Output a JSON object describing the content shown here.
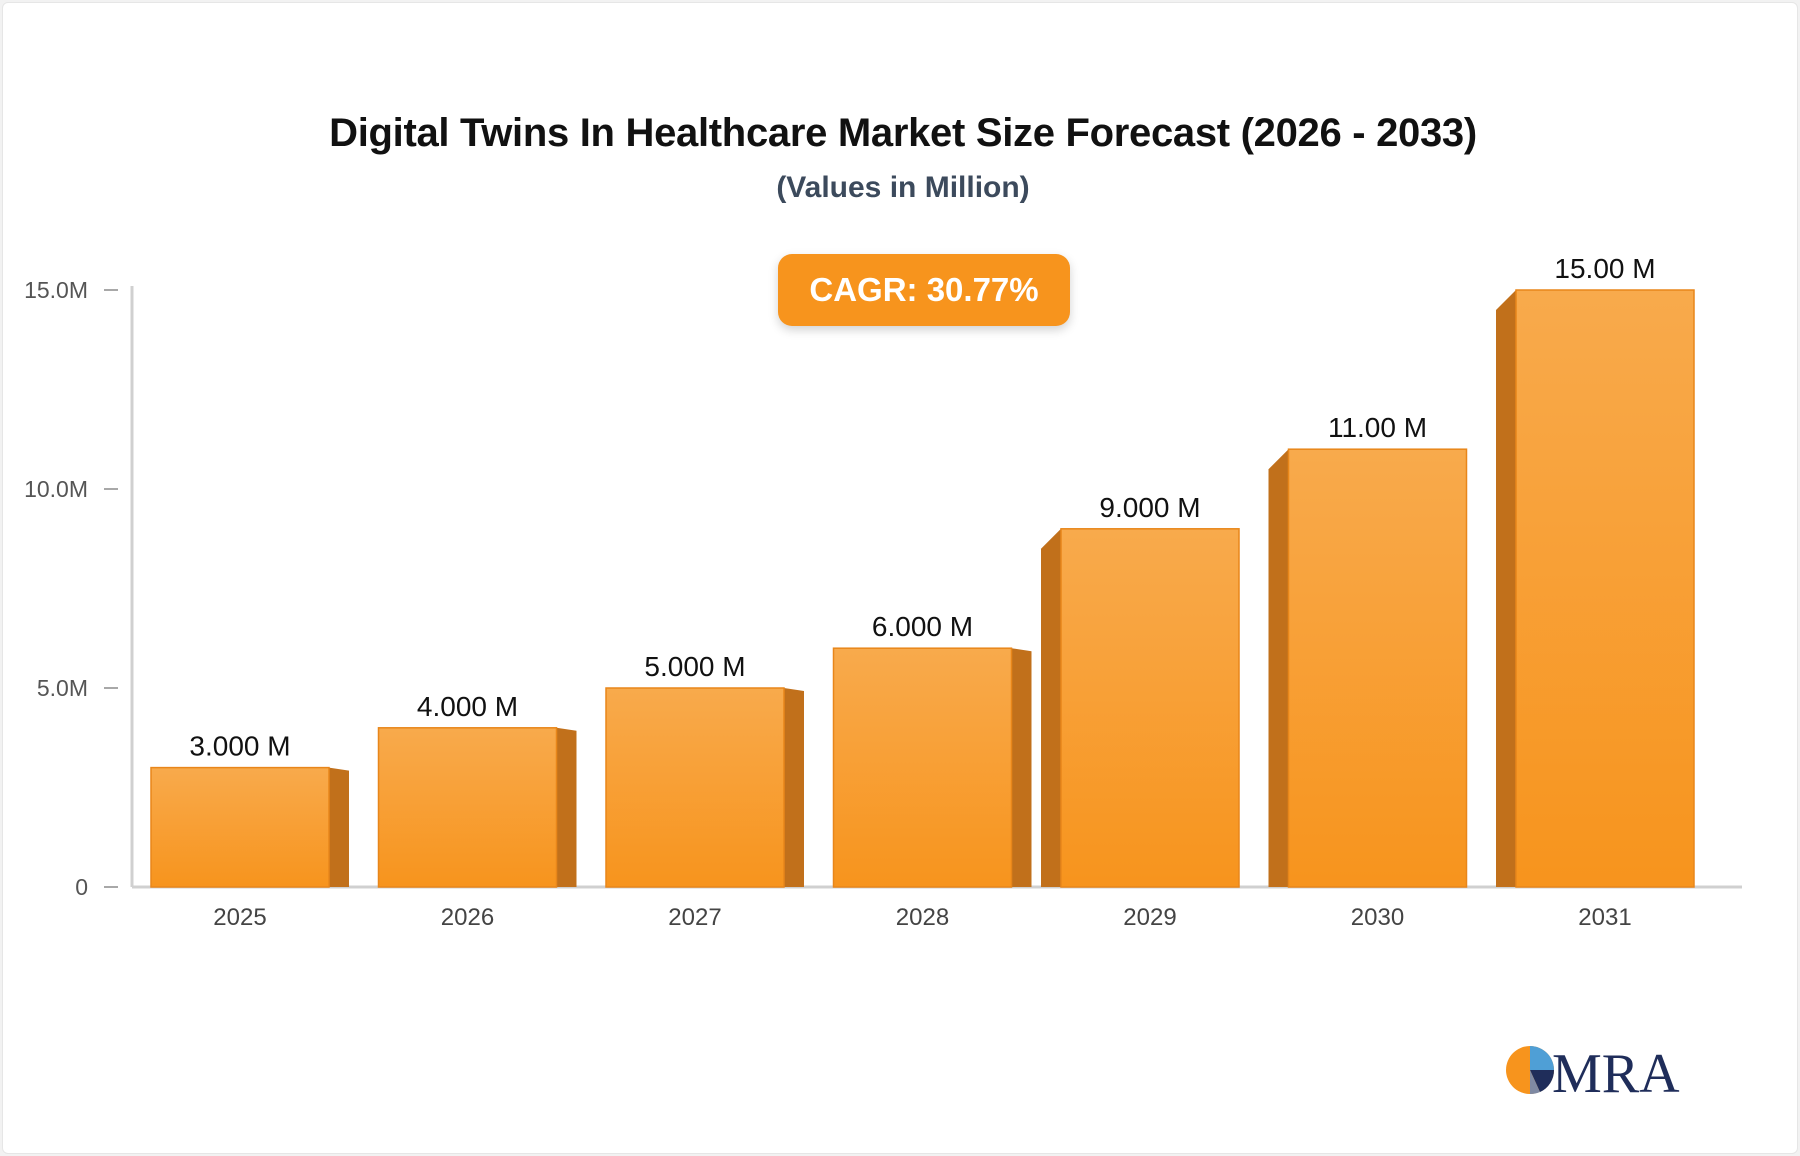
{
  "chart_data": {
    "type": "bar",
    "title": "Digital Twins In Healthcare Market Size Forecast (2026 - 2033)",
    "subtitle": "(Values in Million)",
    "categories": [
      "2025",
      "2026",
      "2027",
      "2028",
      "2029",
      "2030",
      "2031"
    ],
    "values": [
      3,
      4,
      5,
      6,
      9,
      11,
      15
    ],
    "data_labels": [
      "3.000 M",
      "4.000 M",
      "5.000 M",
      "6.000 M",
      "9.000 M",
      "11.00 M",
      "15.00 M"
    ],
    "y_ticks": [
      {
        "value": 0,
        "label": "0"
      },
      {
        "value": 5,
        "label": "5.0M"
      },
      {
        "value": 10,
        "label": "10.0M"
      },
      {
        "value": 15,
        "label": "15.0M"
      }
    ],
    "ylim": [
      0,
      15
    ],
    "grid": false,
    "legend": "none",
    "annotation": "CAGR: 30.77%"
  },
  "colors": {
    "bar_top": "#f8aa4c",
    "bar_bottom": "#f7941d",
    "bar_side": "#c1701b",
    "bar_edge": "#e8861a",
    "axis": "#d0d0d0",
    "cagr_bg": "#f7941d",
    "logo_text": "#1f2d5a"
  },
  "logo": {
    "text": "MRA"
  }
}
